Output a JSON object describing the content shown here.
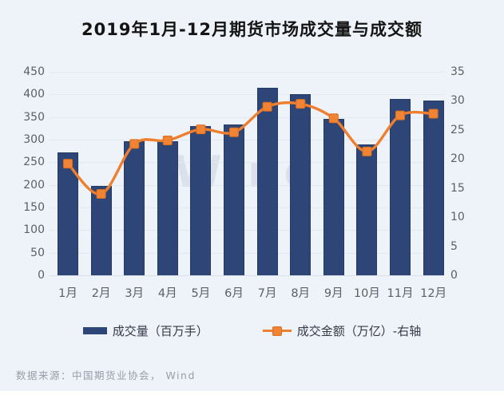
{
  "title": "2019年1月-12月期货市场成交量与成交额",
  "watermark": "Wind",
  "footer": {
    "source": "数据来源：中国期货业协会， Wind"
  },
  "legend": {
    "items": [
      {
        "label": "成交量（百万手）",
        "swatch": "bar"
      },
      {
        "label": "成交金额（万亿）-右轴",
        "swatch": "line"
      }
    ]
  },
  "colors": {
    "background": "#eef2f9",
    "bar": "#2e4577",
    "bar_border": "#263a66",
    "line": "#ee7f2f",
    "marker_fill": "#f08434",
    "marker_stroke": "#d96f1e",
    "grid": "#e2e8f1",
    "axis_text": "#5a6069",
    "title_text": "#141414",
    "footer_text": "#989ea8",
    "watermark_text": "#c3cad6"
  },
  "chart_data": {
    "type": "bar",
    "subtype": "combo-bar-line-dual-axis",
    "title": "2019年1月-12月期货市场成交量与成交额",
    "categories": [
      "1月",
      "2月",
      "3月",
      "4月",
      "5月",
      "6月",
      "7月",
      "8月",
      "9月",
      "10月",
      "11月",
      "12月"
    ],
    "series": [
      {
        "name": "成交量（百万手）",
        "type": "bar",
        "axis": "left",
        "values": [
          271,
          198,
          296,
          297,
          330,
          334,
          415,
          400,
          346,
          290,
          390,
          386
        ]
      },
      {
        "name": "成交金额（万亿）-右轴",
        "type": "line",
        "axis": "right",
        "values": [
          19.2,
          14.0,
          22.6,
          23.2,
          25.1,
          24.6,
          29.0,
          29.5,
          27.0,
          21.3,
          27.5,
          27.8
        ]
      }
    ],
    "left_axis": {
      "min": 0,
      "max": 450,
      "step": 50,
      "ticks": [
        0,
        50,
        100,
        150,
        200,
        250,
        300,
        350,
        400,
        450
      ]
    },
    "right_axis": {
      "min": 0,
      "max": 35,
      "step": 5,
      "ticks": [
        0,
        5,
        10,
        15,
        20,
        25,
        30,
        35
      ]
    },
    "grid": true,
    "legend_position": "bottom",
    "xlabel": "",
    "ylabel_left": "成交量（百万手）",
    "ylabel_right": "成交金额（万亿）"
  }
}
